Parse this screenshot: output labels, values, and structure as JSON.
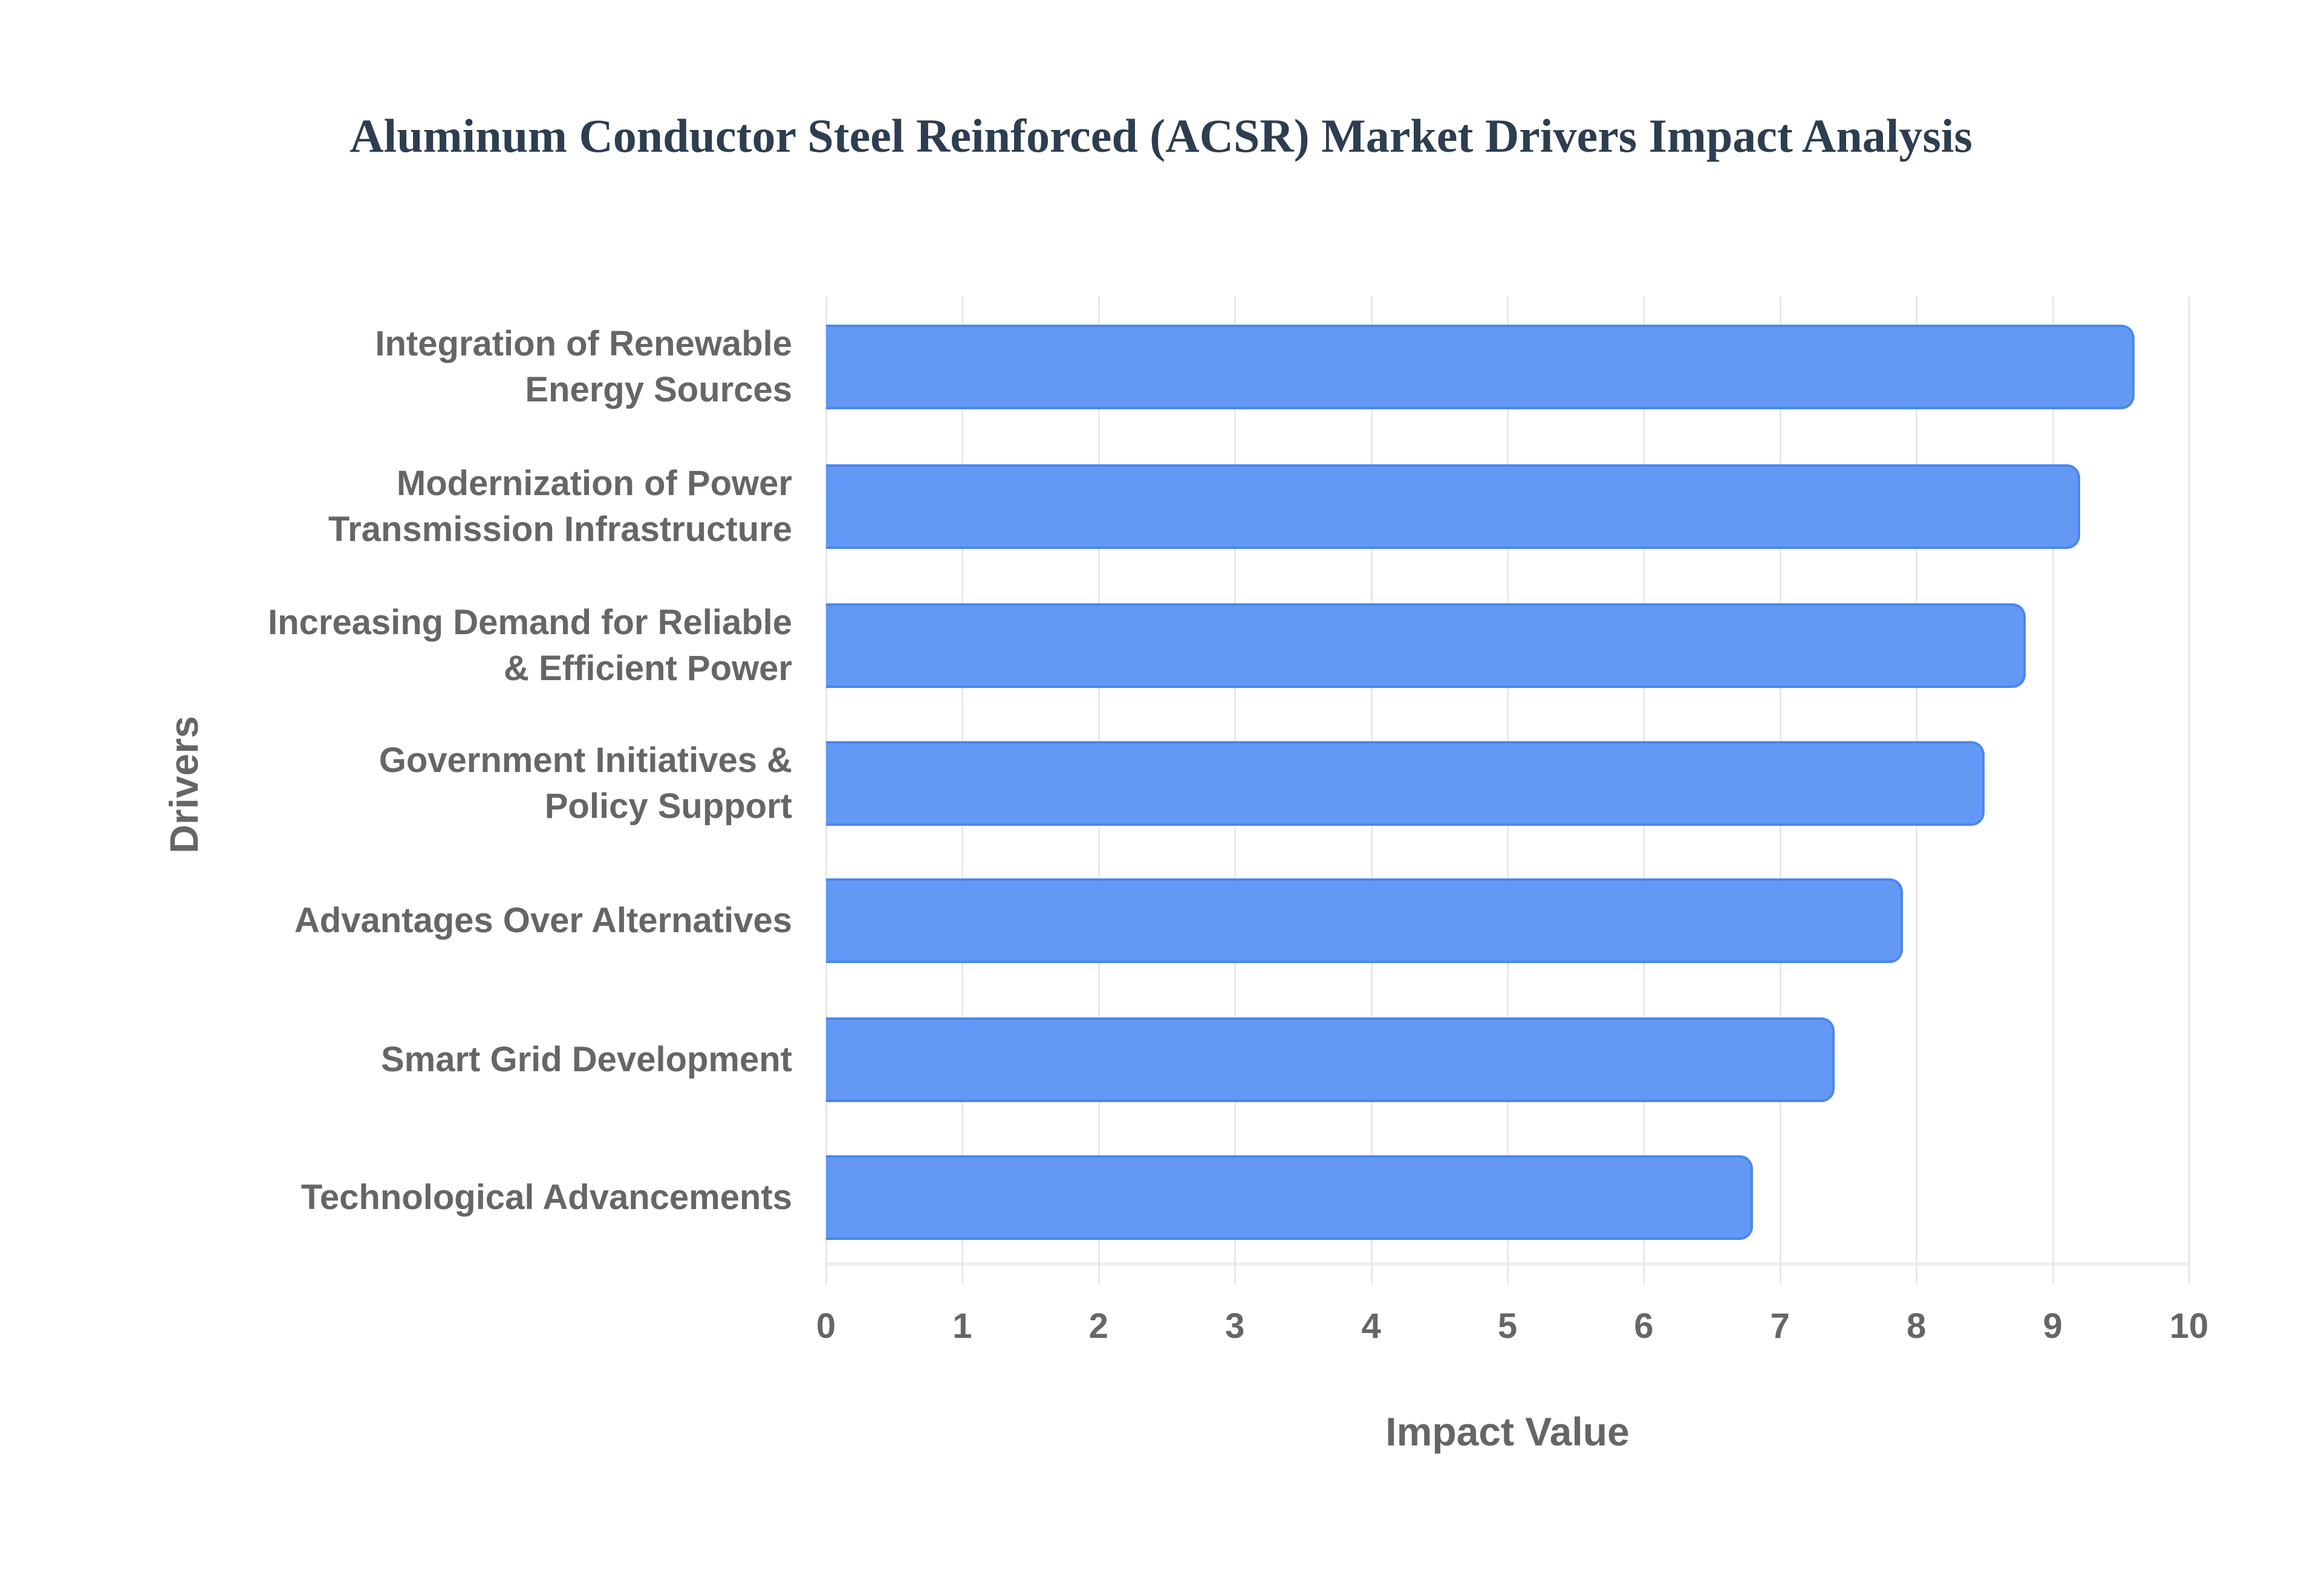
{
  "chart_data": {
    "type": "bar",
    "orientation": "horizontal",
    "title": "Aluminum Conductor Steel Reinforced (ACSR) Market Drivers Impact Analysis",
    "xlabel": "Impact Value",
    "ylabel": "Drivers",
    "xlim": [
      0,
      10
    ],
    "xticks": [
      "0",
      "1",
      "2",
      "3",
      "4",
      "5",
      "6",
      "7",
      "8",
      "9",
      "10"
    ],
    "grid": true,
    "legend": false,
    "bar_color": "#6399f4",
    "categories": [
      "Integration of Renewable\nEnergy Sources",
      "Modernization of Power\nTransmission Infrastructure",
      "Increasing Demand for Reliable\n& Efficient Power",
      "Government Initiatives &\nPolicy Support",
      "Advantages Over Alternatives",
      "Smart Grid Development",
      "Technological Advancements"
    ],
    "values": [
      9.6,
      9.2,
      8.8,
      8.5,
      7.9,
      7.4,
      6.8
    ]
  }
}
